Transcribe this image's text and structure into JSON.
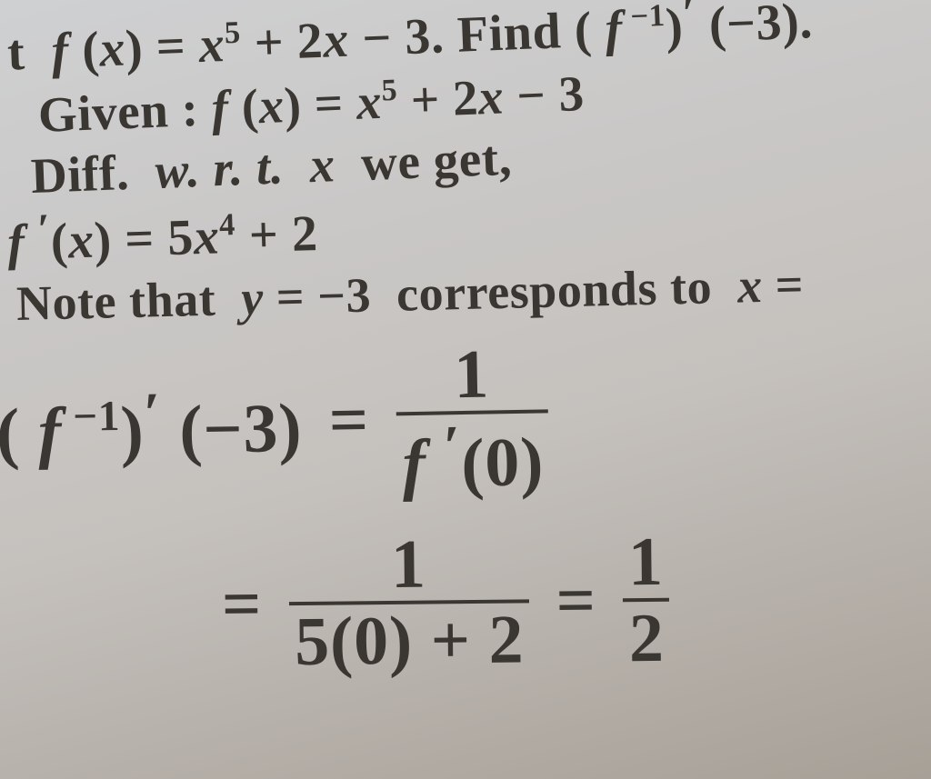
{
  "bg_gradient": {
    "from": "#cfd0d2",
    "via": "#c5c1bd",
    "to": "#a7a097"
  },
  "text_color": "#3a3632",
  "rule_color": "#3a3632",
  "font_family": "Times New Roman",
  "lines": {
    "l1": "t f (x)  =  x⁵ + 2x − 3. Find ( f ⁻¹)′ (−3).",
    "l2": "Given : f (x)  =  x⁵ + 2x − 3",
    "l3": "Diff.  w.  r.  t.  x  we get,",
    "l4": "f ′(x)  =  5x⁴ + 2",
    "l5": "Note that  y = −3  corresponds to  x ="
  },
  "eq6": {
    "lhs_outer_open": "(",
    "lhs_f": "f",
    "lhs_exp": "−1",
    "lhs_outer_close": ")",
    "lhs_prime": "′",
    "lhs_arg": "(−3)",
    "eq": "=",
    "num": "1",
    "den_f": "f",
    "den_prime": "′",
    "den_arg": "(0)"
  },
  "eq7": {
    "eq1": "=",
    "numA": "1",
    "denA": "5(0) + 2",
    "eq2": "=",
    "numB": "1",
    "denB": "2"
  }
}
